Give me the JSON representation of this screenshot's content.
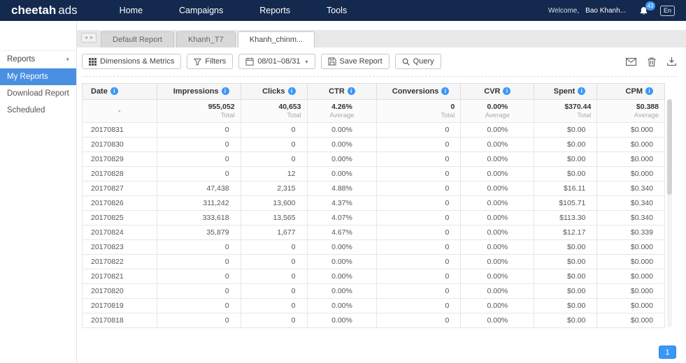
{
  "brand": {
    "name_bold": "cheetah",
    "name_light": "ads"
  },
  "navbar": {
    "items": [
      {
        "label": "Home"
      },
      {
        "label": "Campaigns"
      },
      {
        "label": "Reports"
      },
      {
        "label": "Tools"
      }
    ],
    "welcome_label": "Welcome,",
    "username": "Bao Khanh...",
    "notifications_count": "43",
    "language_label": "En"
  },
  "sidebar": {
    "section_label": "Reports",
    "items": [
      {
        "label": "My Reports",
        "active": true
      },
      {
        "label": "Download Report",
        "active": false
      },
      {
        "label": "Scheduled",
        "active": false
      }
    ]
  },
  "tabs": [
    {
      "label": "Default Report",
      "active": false
    },
    {
      "label": "Khanh_T7",
      "active": false
    },
    {
      "label": "Khanh_chinm...",
      "active": true
    }
  ],
  "toolbar": {
    "dimensions_metrics_label": "Dimensions & Metrics",
    "filters_label": "Filters",
    "date_range_label": "08/01–08/31",
    "save_report_label": "Save Report",
    "query_label": "Query"
  },
  "table": {
    "columns": [
      "Date",
      "Impressions",
      "Clicks",
      "CTR",
      "Conversions",
      "CVR",
      "Spent",
      "CPM"
    ],
    "summary": {
      "date": "-",
      "cells": [
        {
          "value": "955,052",
          "sub": "Total"
        },
        {
          "value": "40,653",
          "sub": "Total"
        },
        {
          "value": "4.26%",
          "sub": "Average"
        },
        {
          "value": "0",
          "sub": "Total"
        },
        {
          "value": "0.00%",
          "sub": "Average"
        },
        {
          "value": "$370.44",
          "sub": "Total"
        },
        {
          "value": "$0.388",
          "sub": "Average"
        }
      ]
    },
    "rows": [
      {
        "date": "20170831",
        "values": [
          "0",
          "0",
          "0.00%",
          "0",
          "0.00%",
          "$0.00",
          "$0.000"
        ]
      },
      {
        "date": "20170830",
        "values": [
          "0",
          "0",
          "0.00%",
          "0",
          "0.00%",
          "$0.00",
          "$0.000"
        ]
      },
      {
        "date": "20170829",
        "values": [
          "0",
          "0",
          "0.00%",
          "0",
          "0.00%",
          "$0.00",
          "$0.000"
        ]
      },
      {
        "date": "20170828",
        "values": [
          "0",
          "12",
          "0.00%",
          "0",
          "0.00%",
          "$0.00",
          "$0.000"
        ]
      },
      {
        "date": "20170827",
        "values": [
          "47,438",
          "2,315",
          "4.88%",
          "0",
          "0.00%",
          "$16.11",
          "$0.340"
        ]
      },
      {
        "date": "20170826",
        "values": [
          "311,242",
          "13,600",
          "4.37%",
          "0",
          "0.00%",
          "$105.71",
          "$0.340"
        ]
      },
      {
        "date": "20170825",
        "values": [
          "333,618",
          "13,565",
          "4.07%",
          "0",
          "0.00%",
          "$113.30",
          "$0.340"
        ]
      },
      {
        "date": "20170824",
        "values": [
          "35,879",
          "1,677",
          "4.67%",
          "0",
          "0.00%",
          "$12.17",
          "$0.339"
        ]
      },
      {
        "date": "20170823",
        "values": [
          "0",
          "0",
          "0.00%",
          "0",
          "0.00%",
          "$0.00",
          "$0.000"
        ]
      },
      {
        "date": "20170822",
        "values": [
          "0",
          "0",
          "0.00%",
          "0",
          "0.00%",
          "$0.00",
          "$0.000"
        ]
      },
      {
        "date": "20170821",
        "values": [
          "0",
          "0",
          "0.00%",
          "0",
          "0.00%",
          "$0.00",
          "$0.000"
        ]
      },
      {
        "date": "20170820",
        "values": [
          "0",
          "0",
          "0.00%",
          "0",
          "0.00%",
          "$0.00",
          "$0.000"
        ]
      },
      {
        "date": "20170819",
        "values": [
          "0",
          "0",
          "0.00%",
          "0",
          "0.00%",
          "$0.00",
          "$0.000"
        ]
      },
      {
        "date": "20170818",
        "values": [
          "0",
          "0",
          "0.00%",
          "0",
          "0.00%",
          "$0.00",
          "$0.000"
        ]
      }
    ]
  },
  "pagination": {
    "current_page": "1"
  },
  "colors": {
    "navbar_bg": "#14294e",
    "accent_blue": "#3b97f7",
    "sidebar_active_bg": "#4a90e2"
  }
}
